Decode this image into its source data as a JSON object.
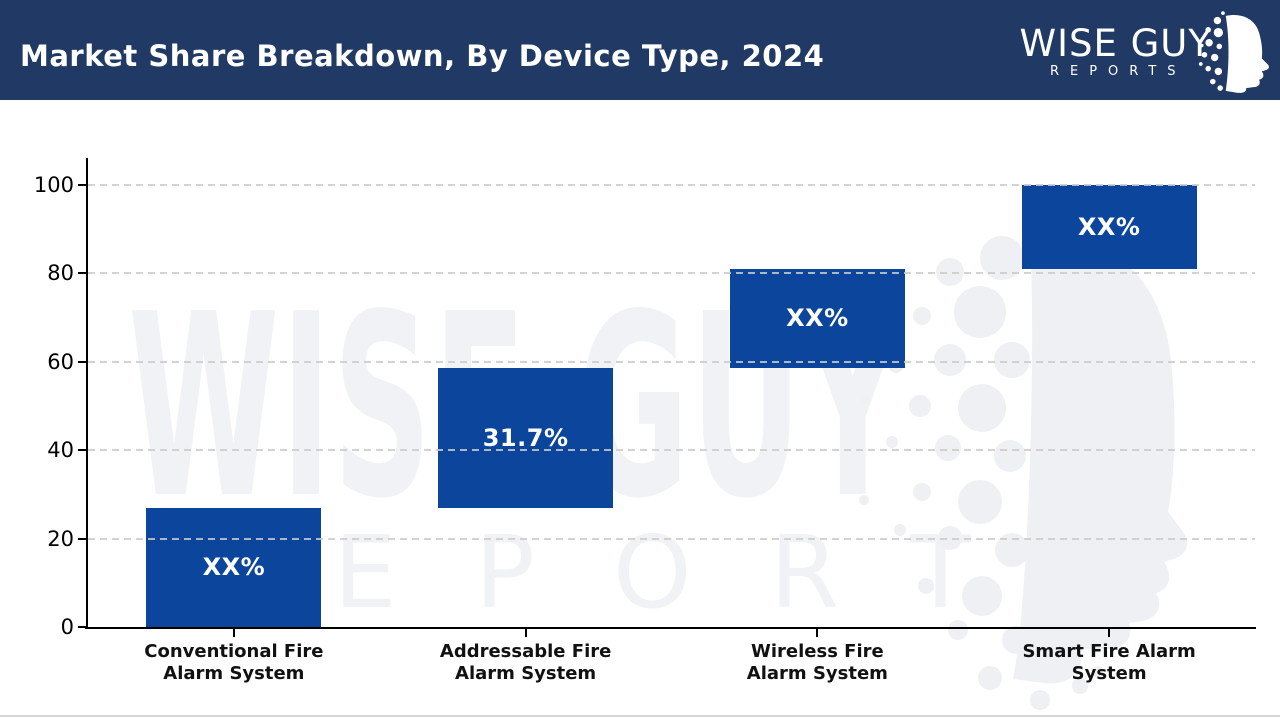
{
  "header": {
    "title": "Market Share Breakdown, By Device Type, 2024",
    "bg_color": "#213965",
    "logo": {
      "line1": "WISE GUY",
      "line2": "REPORTS"
    }
  },
  "watermark": {
    "line1": "WISE GUY",
    "line2": "REPORTS"
  },
  "chart_data": {
    "type": "bar",
    "subtype": "waterfall",
    "title": "Market Share Breakdown, By Device Type, 2024",
    "categories": [
      "Conventional Fire\nAlarm System",
      "Addressable Fire\nAlarm System",
      "Wireless Fire\nAlarm System",
      "Smart Fire Alarm\nSystem"
    ],
    "segments": [
      {
        "label": "XX%",
        "start": 0,
        "end": 27
      },
      {
        "label": "31.7%",
        "start": 27,
        "end": 58.7
      },
      {
        "label": "XX%",
        "start": 58.7,
        "end": 81
      },
      {
        "label": "XX%",
        "start": 81,
        "end": 100
      }
    ],
    "values": [
      27,
      31.7,
      22.3,
      19
    ],
    "yticks": [
      0,
      20,
      40,
      60,
      80,
      100
    ],
    "ylim": [
      0,
      105
    ],
    "xlabel": "",
    "ylabel": "",
    "grid": true,
    "grid_style": "dashed",
    "legend": "none",
    "bar_color": "#0c459c",
    "grid_color": "#cbcbcb",
    "axis_color": "#000000"
  }
}
